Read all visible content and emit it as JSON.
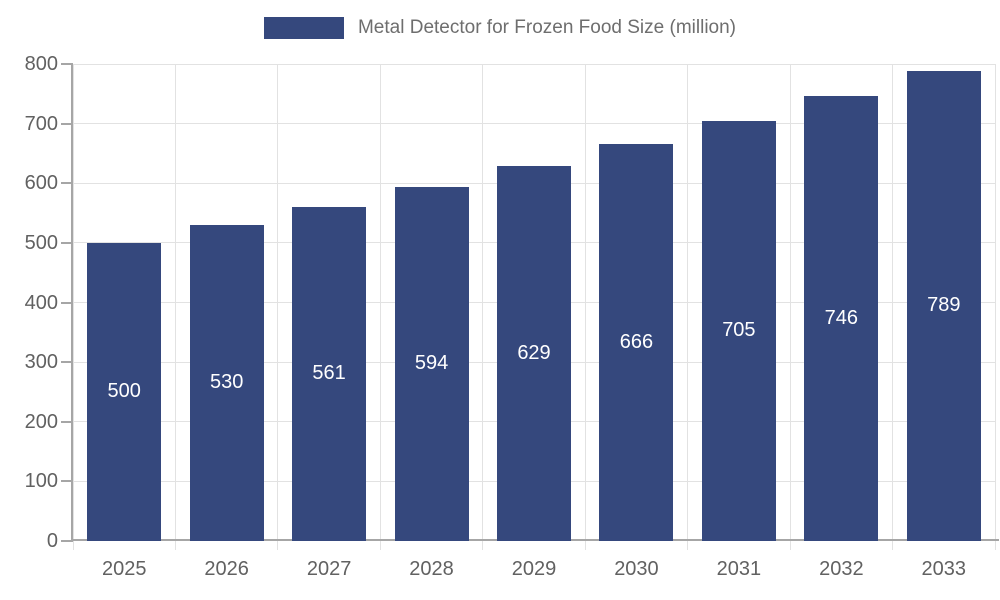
{
  "colors": {
    "bar": "#35487D",
    "grid": "#e2e2e2",
    "axis": "#a6a6a6",
    "tick_label": "#616161",
    "legend_text": "#6e6e6e",
    "bar_label": "#ffffff",
    "background": "#ffffff"
  },
  "chart_data": {
    "type": "bar",
    "title": "Metal Detector for Frozen Food Size (million)",
    "legend": [
      "Metal Detector for Frozen Food Size (million)"
    ],
    "legend_position": "top",
    "categories": [
      "2025",
      "2026",
      "2027",
      "2028",
      "2029",
      "2030",
      "2031",
      "2032",
      "2033"
    ],
    "values": [
      500,
      530,
      561,
      594,
      629,
      666,
      705,
      746,
      789
    ],
    "xlabel": "",
    "ylabel": "",
    "ylim": [
      0,
      800
    ],
    "ytick_step": 100,
    "yticks": [
      0,
      100,
      200,
      300,
      400,
      500,
      600,
      700,
      800
    ],
    "grid": true,
    "bar_value_labels": "inside-center"
  }
}
